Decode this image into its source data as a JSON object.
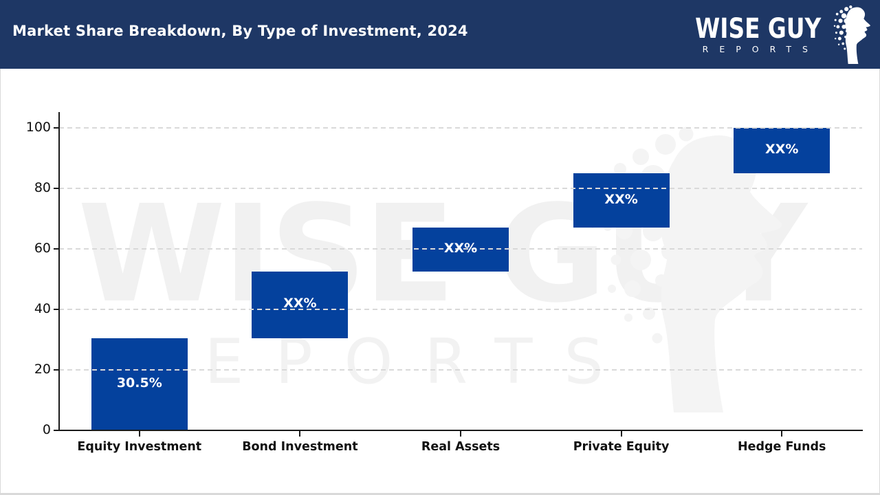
{
  "header": {
    "title": "Market Share Breakdown, By Type of Investment, 2024",
    "logo": {
      "line1": "WISE GUY",
      "line2": "REPORTS"
    }
  },
  "watermark": {
    "line1": "WISE GUY",
    "line2": "REPORTS"
  },
  "chart_data": {
    "type": "bar",
    "subtype": "waterfall",
    "title": "Market Share Breakdown, By Type of Investment, 2024",
    "categories": [
      "Equity Investment",
      "Bond Investment",
      "Real Assets",
      "Private Equity",
      "Hedge Funds"
    ],
    "bars": [
      {
        "category": "Equity Investment",
        "start": 0,
        "end": 30.5,
        "label": "30.5%"
      },
      {
        "category": "Bond Investment",
        "start": 30.5,
        "end": 52.5,
        "label": "XX%"
      },
      {
        "category": "Real Assets",
        "start": 52.5,
        "end": 67,
        "label": "XX%"
      },
      {
        "category": "Private Equity",
        "start": 67,
        "end": 85,
        "label": "XX%"
      },
      {
        "category": "Hedge Funds",
        "start": 85,
        "end": 100,
        "label": "XX%"
      }
    ],
    "xlabel": "",
    "ylabel": "",
    "ylim": [
      0,
      100
    ],
    "yticks": [
      "0",
      "20",
      "40",
      "60",
      "80",
      "100"
    ],
    "grid": "horizontal-dashed-above-bars",
    "legend": "none",
    "colors": {
      "bar": "#04419d",
      "bar_label": "#ffffff",
      "grid": "#d9d9d9",
      "axis": "#1a1a1a",
      "header_bg": "#1e3765",
      "header_text": "#ffffff",
      "watermark": "#f2f2f2"
    }
  }
}
